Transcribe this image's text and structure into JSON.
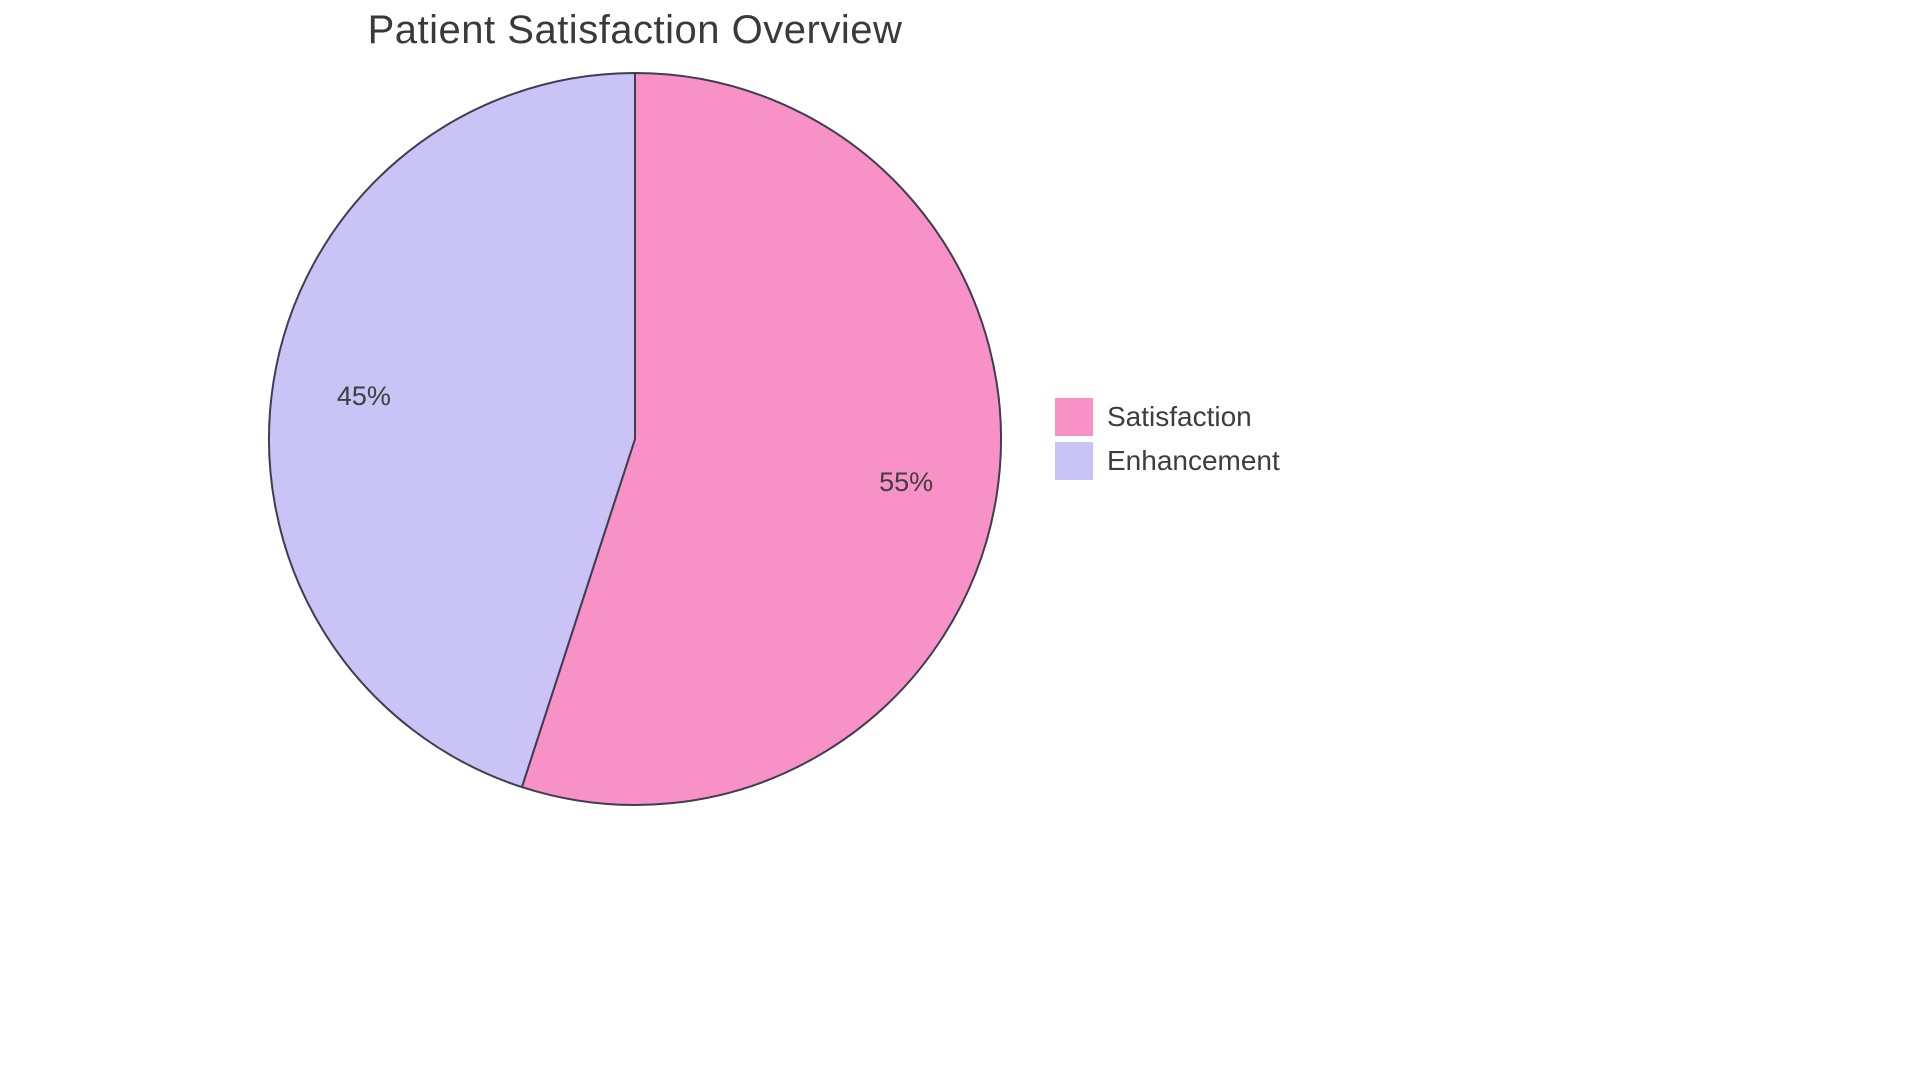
{
  "chart_data": {
    "type": "pie",
    "title": "Patient Satisfaction Overview",
    "slices": [
      {
        "label": "Satisfaction",
        "value": 55,
        "display": "55%",
        "color": "#F891C6"
      },
      {
        "label": "Enhancement",
        "value": 45,
        "display": "45%",
        "color": "#C9C4F5"
      }
    ],
    "start_angle_deg": 0,
    "direction": "clockwise",
    "legend_position": "right",
    "slice_border_color": "#3E3D54",
    "slice_border_width": 2,
    "label_color": "#3f3f3f",
    "title_color": "#3a3a3a",
    "background_color": "#ffffff"
  }
}
